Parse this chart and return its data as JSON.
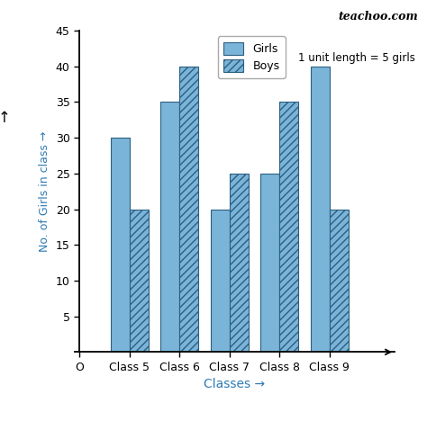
{
  "categories": [
    "Class 5",
    "Class 6",
    "Class 7",
    "Class 8",
    "Class 9"
  ],
  "girls_values": [
    30,
    35,
    20,
    25,
    40
  ],
  "boys_values": [
    20,
    40,
    25,
    35,
    20
  ],
  "bar_color": "#7ab4d8",
  "hatch_boys": "////",
  "title": "teachoo.com",
  "xlabel": "Classes →",
  "ylabel": "No. of Girls in class →",
  "ylabel_color": "#2e7bb5",
  "xlabel_color": "#2e7bb5",
  "ylim": [
    0,
    45
  ],
  "yticks": [
    5,
    10,
    15,
    20,
    25,
    30,
    35,
    40,
    45
  ],
  "annotation": "1 unit length = 5 girls",
  "legend_girls": "Girls",
  "legend_boys": "Boys",
  "background_color": "#ffffff",
  "bar_width": 0.38,
  "bar_edge_color": "#2c5f80"
}
